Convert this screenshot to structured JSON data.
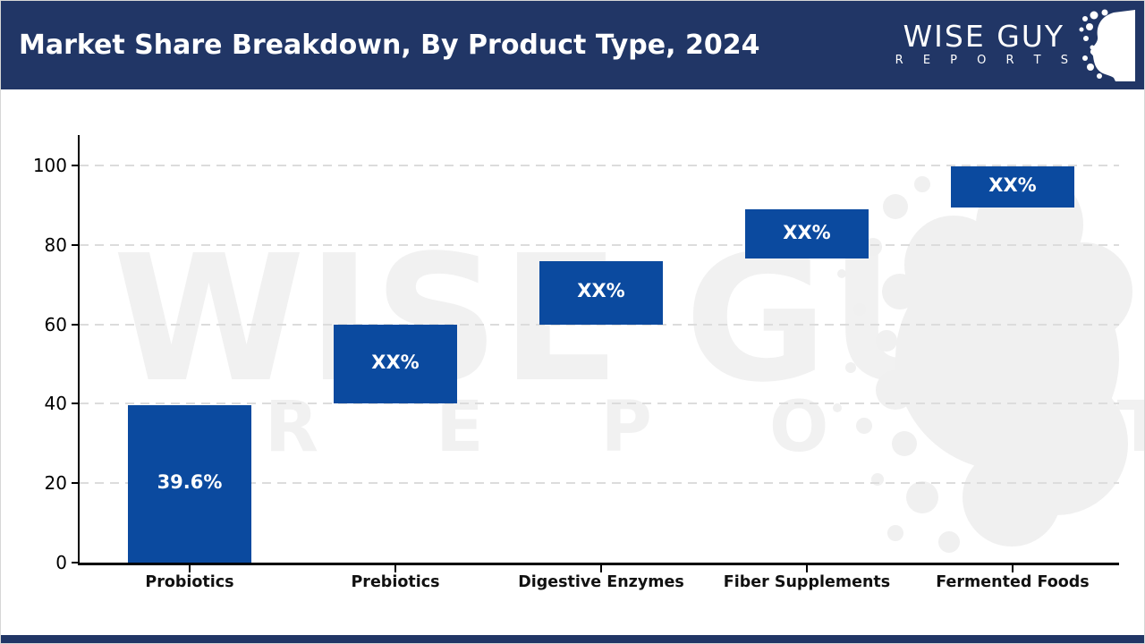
{
  "header": {
    "title": "Market Share Breakdown, By Product Type, 2024",
    "bg_color": "#213666",
    "logo_line1": "WISE GUY",
    "logo_line2": "R E P O R T S"
  },
  "watermark": {
    "line1": "WISE GUY",
    "line2": "R E P O R T S"
  },
  "footer": {
    "bg_color": "#213666"
  },
  "chart_data": {
    "type": "bar",
    "subtype": "waterfall",
    "title": "Market Share Breakdown, By Product Type, 2024",
    "categories": [
      "Probiotics",
      "Prebiotics",
      "Digestive Enzymes",
      "Fiber Supplements",
      "Fermented Foods"
    ],
    "segments": [
      {
        "category": "Probiotics",
        "start": 0,
        "end": 39.6,
        "label": "39.6%"
      },
      {
        "category": "Prebiotics",
        "start": 40,
        "end": 60,
        "label": "XX%"
      },
      {
        "category": "Digestive Enzymes",
        "start": 60,
        "end": 76,
        "label": "XX%"
      },
      {
        "category": "Fiber Supplements",
        "start": 76.5,
        "end": 89,
        "label": "XX%"
      },
      {
        "category": "Fermented Foods",
        "start": 89.5,
        "end": 99.8,
        "label": "XX%"
      }
    ],
    "y_ticks": [
      0,
      20,
      40,
      60,
      80,
      100
    ],
    "ylim": [
      0,
      107
    ],
    "xlabel": "",
    "ylabel": "",
    "grid": true,
    "grid_style": "dashed",
    "legend": false,
    "bar_color": "#0b4a9f",
    "value_label_color": "#ffffff",
    "axis_color": "#000000",
    "grid_color": "#dcdcdc"
  }
}
